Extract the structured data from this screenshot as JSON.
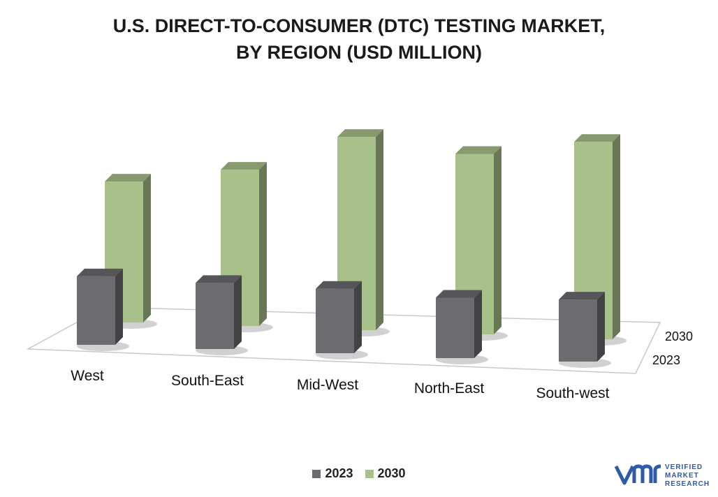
{
  "chart_data": {
    "type": "bar",
    "title_line1": "U.S. DIRECT-TO-CONSUMER  (DTC) TESTING MARKET,",
    "title_line2": "BY REGION (USD MILLION)",
    "categories": [
      "West",
      "South-East",
      "Mid-West",
      "North-East",
      "South-west"
    ],
    "series": [
      {
        "name": "2023",
        "values": [
          85,
          82,
          80,
          75,
          77
        ],
        "color": "#6b6b70"
      },
      {
        "name": "2030",
        "values": [
          175,
          194,
          240,
          224,
          245
        ],
        "color": "#a8c08a"
      }
    ],
    "depth_labels": [
      "2030",
      "2023"
    ],
    "ylim": [
      0,
      260
    ],
    "grid": false,
    "legend_position": "bottom",
    "style": "3d-columns"
  },
  "brand": {
    "line1": "VERIFIED",
    "line2": "MARKET",
    "line3": "RESEARCH",
    "logo_text": "vmr",
    "color": "#2e5aa8"
  }
}
